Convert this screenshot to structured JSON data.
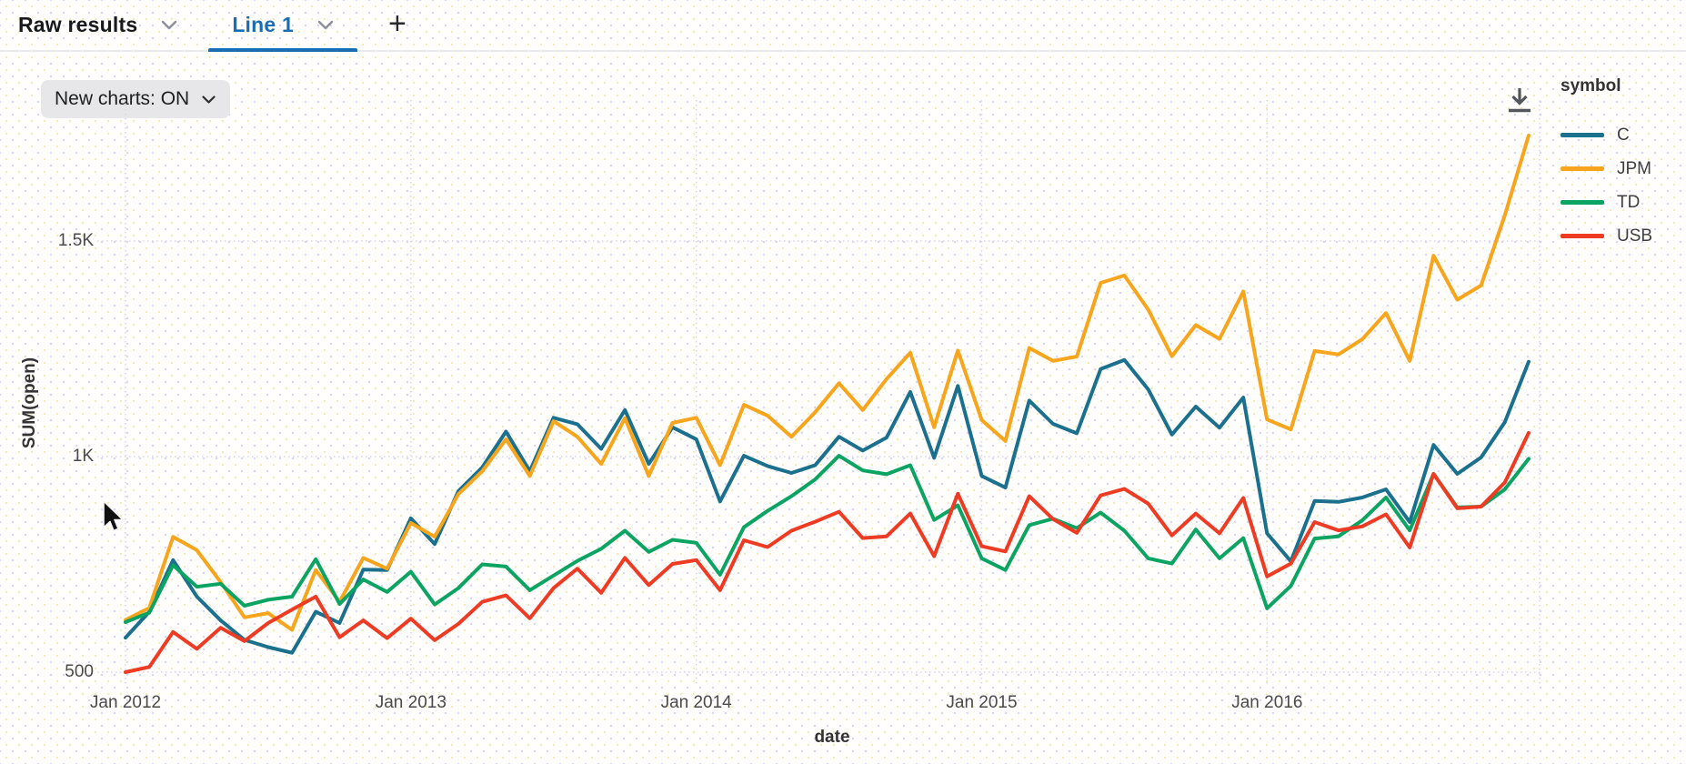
{
  "tab_bar": {
    "tabs": [
      {
        "label": "Raw results",
        "active": false
      },
      {
        "label": "Line 1",
        "active": true
      }
    ],
    "add_tab_label": "+"
  },
  "toolbar": {
    "new_charts_label": "New charts: ON"
  },
  "icons": {
    "chevron_down": "⌄",
    "download": "⬇",
    "add": "+"
  },
  "colors": {
    "active_tab": "#1a6cb3",
    "icon_gray": "#8a8f98",
    "grid": "#d9d5ea"
  },
  "chart_data": {
    "type": "line",
    "title": "",
    "xlabel": "date",
    "ylabel": "SUM(open)",
    "legend_title": "symbol",
    "legend_position": "right",
    "grid": true,
    "x_unit": "month",
    "x_start": "Jan 2012",
    "x_end": "Dec 2016",
    "x_tick_labels": [
      "Jan 2012",
      "Jan 2013",
      "Jan 2014",
      "Jan 2015",
      "Jan 2016"
    ],
    "y_tick_labels": [
      "500",
      "1K",
      "1.5K"
    ],
    "y_tick_values": [
      500,
      1000,
      1500
    ],
    "ylim": [
      455,
      1765
    ],
    "series": [
      {
        "name": "C",
        "color": "#1b708d",
        "values": [
          580,
          640,
          760,
          675,
          620,
          575,
          558,
          545,
          640,
          614,
          738,
          737,
          857,
          797,
          920,
          975,
          1058,
          966,
          1090,
          1075,
          1018,
          1108,
          983,
          1068,
          1040,
          896,
          1002,
          978,
          962,
          980,
          1046,
          1014,
          1044,
          1150,
          997,
          1164,
          955,
          928,
          1130,
          1076,
          1054,
          1203,
          1224,
          1156,
          1051,
          1116,
          1067,
          1137,
          822,
          757,
          897,
          895,
          905,
          924,
          848,
          1027,
          960,
          998,
          1080,
          1220
        ]
      },
      {
        "name": "JPM",
        "color": "#f7a51c",
        "values": [
          621,
          649,
          814,
          783,
          709,
          627,
          637,
          598,
          737,
          663,
          765,
          740,
          846,
          814,
          913,
          966,
          1040,
          955,
          1082,
          1046,
          983,
          1089,
          955,
          1078,
          1090,
          980,
          1120,
          1095,
          1046,
          1103,
          1170,
          1108,
          1180,
          1241,
          1068,
          1246,
          1085,
          1036,
          1252,
          1222,
          1232,
          1403,
          1420,
          1341,
          1233,
          1305,
          1273,
          1383,
          1086,
          1063,
          1245,
          1237,
          1272,
          1333,
          1222,
          1466,
          1364,
          1397,
          1560,
          1745
        ]
      },
      {
        "name": "TD",
        "color": "#0ca462",
        "values": [
          616,
          638,
          748,
          698,
          705,
          654,
          668,
          675,
          762,
          658,
          715,
          686,
          733,
          657,
          695,
          750,
          745,
          690,
          724,
          758,
          786,
          828,
          779,
          807,
          800,
          726,
          836,
          874,
          908,
          947,
          1002,
          968,
          959,
          980,
          853,
          887,
          764,
          737,
          841,
          856,
          834,
          870,
          828,
          764,
          752,
          831,
          764,
          811,
          648,
          700,
          810,
          815,
          852,
          905,
          829,
          960,
          882,
          884,
          924,
          995
        ]
      },
      {
        "name": "USB",
        "color": "#ee3b24",
        "values": [
          500,
          512,
          593,
          554,
          603,
          572,
          614,
          645,
          675,
          581,
          620,
          579,
          624,
          574,
          612,
          663,
          678,
          625,
          695,
          740,
          684,
          765,
          702,
          751,
          760,
          690,
          806,
          790,
          828,
          849,
          872,
          811,
          815,
          868,
          769,
          914,
          792,
          780,
          908,
          855,
          823,
          910,
          925,
          891,
          817,
          868,
          822,
          904,
          722,
          752,
          848,
          829,
          838,
          866,
          789,
          960,
          880,
          884,
          940,
          1055
        ]
      }
    ]
  }
}
